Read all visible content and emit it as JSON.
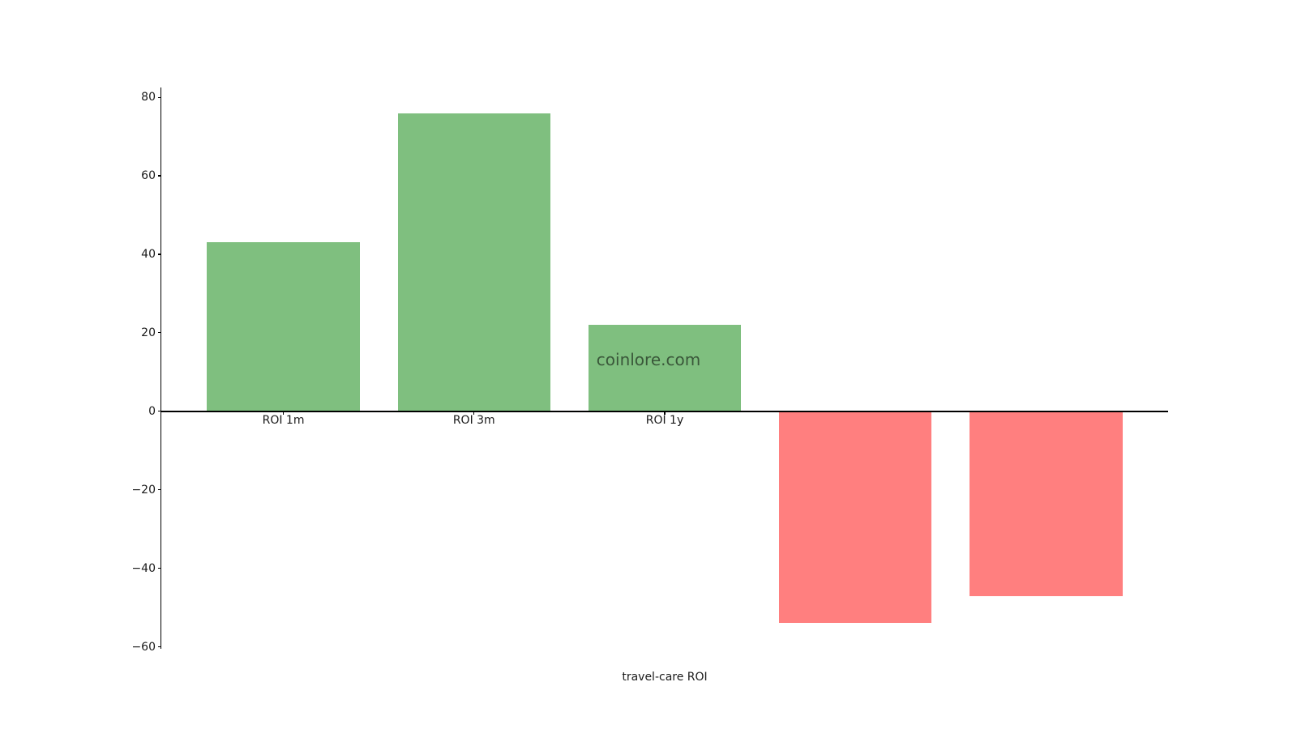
{
  "colors": {
    "positive_bar": "#7fbf7f",
    "negative_bar": "#ff7f7f",
    "axis": "#000000",
    "tick_text": "#1a1a1a",
    "watermark_text": "rgba(0,0,0,0.55)"
  },
  "chart_data": {
    "type": "bar",
    "title": "",
    "xlabel": "travel-care ROI",
    "ylabel": "",
    "categories": [
      "ROI 1m",
      "ROI 3m",
      "ROI 1y",
      "",
      ""
    ],
    "values": [
      43,
      76,
      22,
      -54,
      -47
    ],
    "bar_colors": [
      "#7fbf7f",
      "#7fbf7f",
      "#7fbf7f",
      "#ff7f7f",
      "#ff7f7f"
    ],
    "yticks": [
      80,
      60,
      40,
      20,
      0,
      -20,
      -40,
      -60
    ],
    "ylim": [
      -60.5,
      82.5
    ],
    "xlim": [
      -0.64,
      4.64
    ],
    "grid": false,
    "legend_position": "none",
    "baseline": 0,
    "watermark": "coinlore.com"
  }
}
